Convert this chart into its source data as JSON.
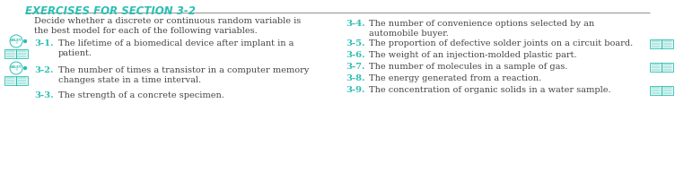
{
  "title": "EXERCISES FOR SECTION 3-2",
  "title_color": "#2BBFB3",
  "bg_color": "#ffffff",
  "line_color": "#999999",
  "text_color": "#444444",
  "teal_color": "#2BBFB3",
  "intro_text_line1": "Decide whether a discrete or continuous random variable is",
  "intro_text_line2": "the best model for each of the following variables.",
  "left_items": [
    {
      "num": "3-1.",
      "text_line1": "The lifetime of a biomedical device after implant in a",
      "text_line2": "patient.",
      "wiley": true,
      "book": true
    },
    {
      "num": "3-2.",
      "text_line1": "The number of times a transistor in a computer memory",
      "text_line2": "changes state in a time interval.",
      "wiley": true,
      "book": true
    },
    {
      "num": "3-3.",
      "text_line1": "The strength of a concrete specimen.",
      "text_line2": "",
      "wiley": false,
      "book": false
    }
  ],
  "right_items": [
    {
      "num": "3-4.",
      "text_line1": "The number of convenience options selected by an",
      "text_line2": "automobile buyer.",
      "book": false
    },
    {
      "num": "3-5.",
      "text_line1": "The proportion of defective solder joints on a circuit board.",
      "text_line2": "",
      "book": true
    },
    {
      "num": "3-6.",
      "text_line1": "The weight of an injection-molded plastic part.",
      "text_line2": "",
      "book": false
    },
    {
      "num": "3-7.",
      "text_line1": "The number of molecules in a sample of gas.",
      "text_line2": "",
      "book": true
    },
    {
      "num": "3-8.",
      "text_line1": "The energy generated from a reaction.",
      "text_line2": "",
      "book": false
    },
    {
      "num": "3-9.",
      "text_line1": "The concentration of organic solids in a water sample.",
      "text_line2": "",
      "book": true
    }
  ]
}
